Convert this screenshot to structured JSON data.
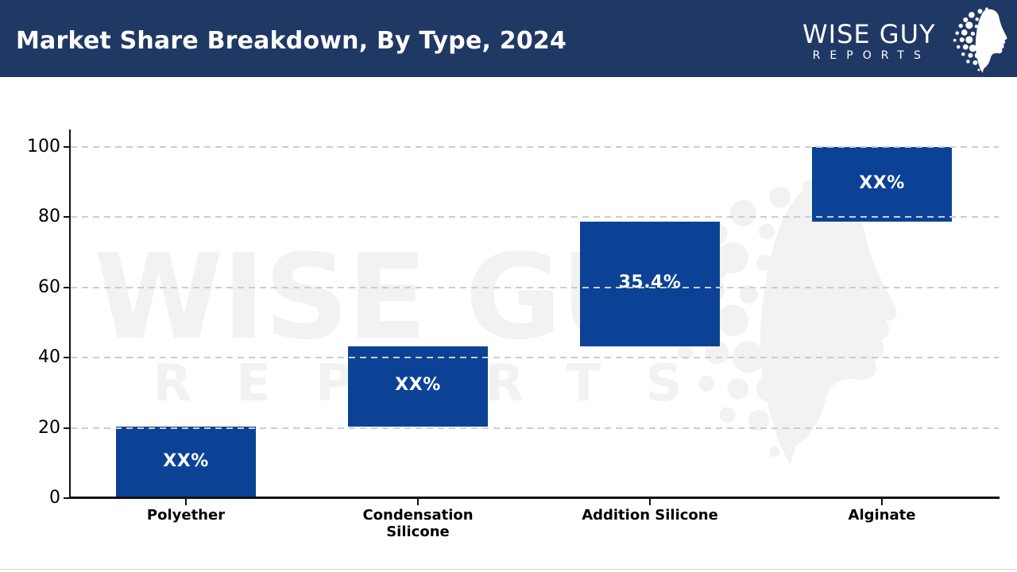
{
  "header": {
    "title": "Market Share Breakdown, By Type, 2024",
    "brand_line1": "WISE GUY",
    "brand_line2": "REPORTS"
  },
  "watermark": {
    "line1": "WISE GUY",
    "line2": "REPORTS"
  },
  "colors": {
    "header_bg": "#203864",
    "bar_fill": "#0b4296",
    "value_label_text": "#ffffff",
    "grid_line": "#cdcdcd",
    "axis_line": "#111111",
    "watermark_gray": "#f2f2f2"
  },
  "chart_data": {
    "type": "bar",
    "subtype": "floating-waterfall",
    "title": "Market Share Breakdown, By Type, 2024",
    "categories": [
      "Polyether",
      "Condensation Silicone",
      "Addition Silicone",
      "Alginate"
    ],
    "category_lines": [
      [
        "Polyether"
      ],
      [
        "Condensation",
        "Silicone"
      ],
      [
        "Addition Silicone"
      ],
      [
        "Alginate"
      ]
    ],
    "segments": [
      {
        "category": "Polyether",
        "start": 0,
        "end": 20.4,
        "value_label": "XX%"
      },
      {
        "category": "Condensation Silicone",
        "start": 20.4,
        "end": 43.3,
        "value_label": "XX%"
      },
      {
        "category": "Addition Silicone",
        "start": 43.3,
        "end": 78.7,
        "value_label": "35.4%"
      },
      {
        "category": "Alginate",
        "start": 78.7,
        "end": 100,
        "value_label": "XX%"
      }
    ],
    "yticks": [
      0,
      20,
      40,
      60,
      80,
      100
    ],
    "ylim": [
      0,
      105
    ],
    "grid": "horizontal dashed, drawn over bars",
    "legend": "none"
  }
}
